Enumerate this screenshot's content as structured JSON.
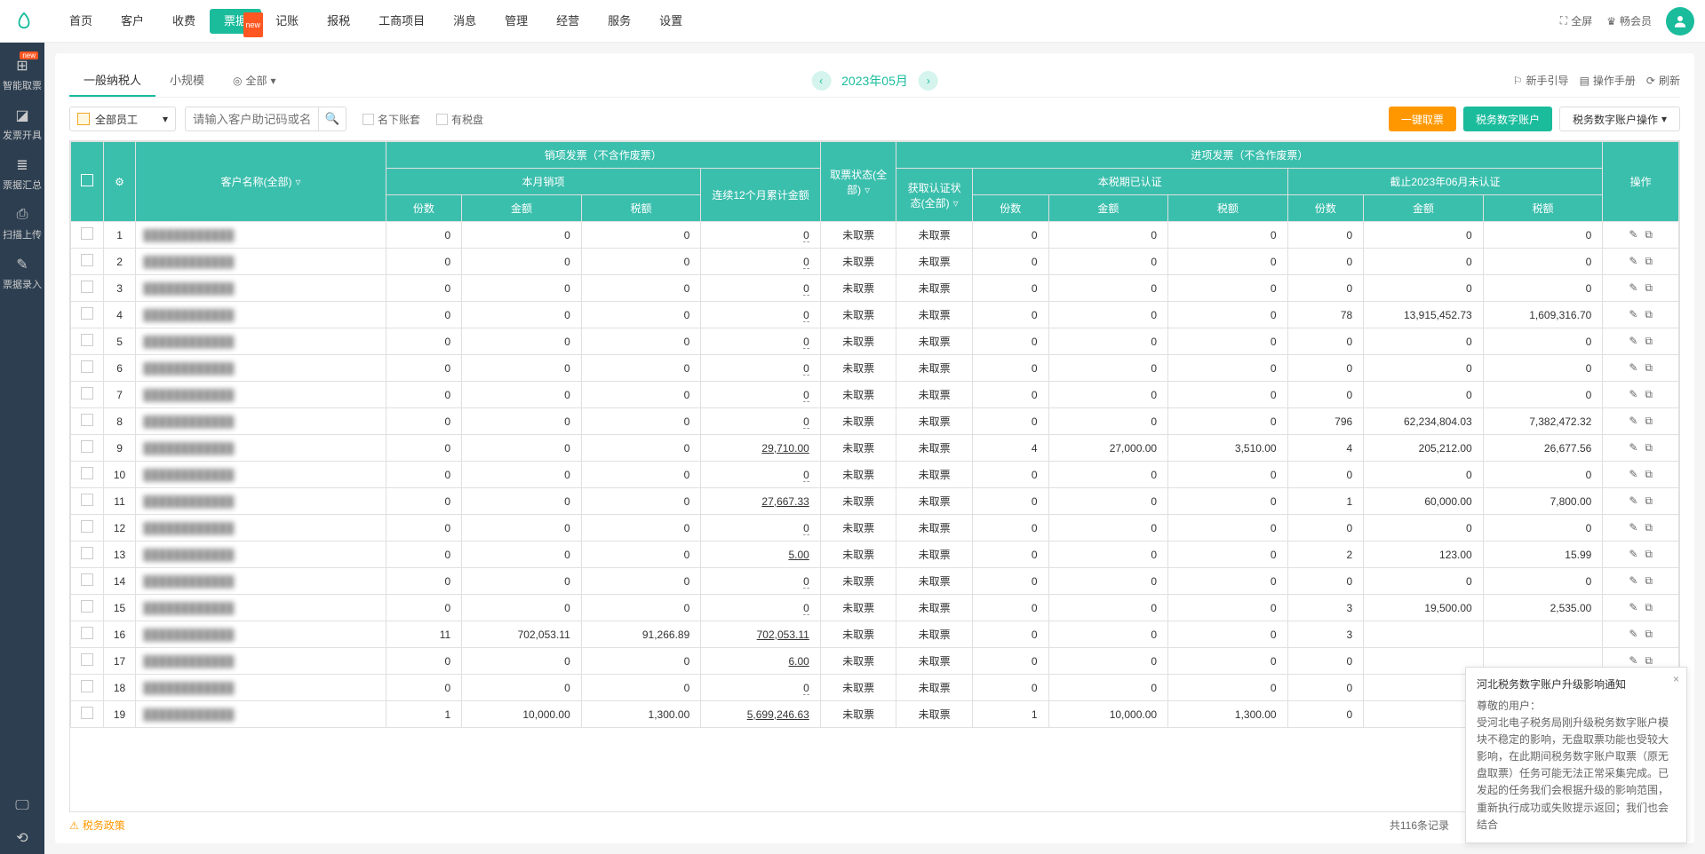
{
  "topnav": {
    "items": [
      "首页",
      "客户",
      "收费",
      "票据",
      "记账",
      "报税",
      "工商项目",
      "消息",
      "管理",
      "经营",
      "服务",
      "设置"
    ],
    "active_index": 3,
    "badge_indices": [
      3
    ],
    "badge_text": "new",
    "right": {
      "fullscreen": "全屏",
      "member": "畅会员"
    }
  },
  "sidebar": {
    "items": [
      {
        "label": "智能取票",
        "icon": "⊞",
        "badge": "new"
      },
      {
        "label": "发票开具",
        "icon": "◪"
      },
      {
        "label": "票据汇总",
        "icon": "≣"
      },
      {
        "label": "扫描上传",
        "icon": "⎙"
      },
      {
        "label": "票据录入",
        "icon": "✎"
      }
    ],
    "bottom": [
      {
        "label": "",
        "icon": "🖵"
      },
      {
        "label": "",
        "icon": "⟲"
      }
    ]
  },
  "tabs": {
    "list": [
      "一般纳税人",
      "小规模"
    ],
    "active_index": 0,
    "extra_label": "全部",
    "period": "2023年05月",
    "right": {
      "guide": "新手引导",
      "manual": "操作手册",
      "refresh": "刷新"
    }
  },
  "filters": {
    "employee_label": "全部员工",
    "search_placeholder": "请输入客户助记码或名称",
    "chk1": "名下账套",
    "chk2": "有税盘",
    "btn_fetch": "一键取票",
    "btn_tax_acct": "税务数字账户",
    "btn_tax_op": "税务数字账户操作"
  },
  "table": {
    "header_group1": {
      "sales": "销项发票（不含作废票）",
      "purchase": "进项发票（不含作废票）"
    },
    "header_group2": {
      "customer": "客户名称(全部)",
      "this_month": "本月销项",
      "cum_12": "连续12个月累计金额",
      "fetch_status": "取票状态(全部)",
      "cert_this": "本税期已认证",
      "cert_until": "截止2023年06月未认证",
      "ops": "操作"
    },
    "header_group3": {
      "count": "份数",
      "amount": "金额",
      "tax": "税额",
      "get_cert_status": "获取认证状态(全部)"
    },
    "status_unfetched": "未取票",
    "rows": [
      {
        "idx": 1,
        "c1": 0,
        "a1": "0",
        "t1": "0",
        "cum": "0",
        "c2": 0,
        "a2": "0",
        "t2": "0",
        "c3": 0,
        "a3": "0",
        "t3": "0"
      },
      {
        "idx": 2,
        "c1": 0,
        "a1": "0",
        "t1": "0",
        "cum": "0",
        "c2": 0,
        "a2": "0",
        "t2": "0",
        "c3": 0,
        "a3": "0",
        "t3": "0"
      },
      {
        "idx": 3,
        "c1": 0,
        "a1": "0",
        "t1": "0",
        "cum": "0",
        "c2": 0,
        "a2": "0",
        "t2": "0",
        "c3": 0,
        "a3": "0",
        "t3": "0"
      },
      {
        "idx": 4,
        "c1": 0,
        "a1": "0",
        "t1": "0",
        "cum": "0",
        "c2": 0,
        "a2": "0",
        "t2": "0",
        "c3": 78,
        "a3": "13,915,452.73",
        "t3": "1,609,316.70"
      },
      {
        "idx": 5,
        "c1": 0,
        "a1": "0",
        "t1": "0",
        "cum": "0",
        "c2": 0,
        "a2": "0",
        "t2": "0",
        "c3": 0,
        "a3": "0",
        "t3": "0"
      },
      {
        "idx": 6,
        "c1": 0,
        "a1": "0",
        "t1": "0",
        "cum": "0",
        "c2": 0,
        "a2": "0",
        "t2": "0",
        "c3": 0,
        "a3": "0",
        "t3": "0"
      },
      {
        "idx": 7,
        "c1": 0,
        "a1": "0",
        "t1": "0",
        "cum": "0",
        "c2": 0,
        "a2": "0",
        "t2": "0",
        "c3": 0,
        "a3": "0",
        "t3": "0"
      },
      {
        "idx": 8,
        "c1": 0,
        "a1": "0",
        "t1": "0",
        "cum": "0",
        "c2": 0,
        "a2": "0",
        "t2": "0",
        "c3": 796,
        "a3": "62,234,804.03",
        "t3": "7,382,472.32"
      },
      {
        "idx": 9,
        "c1": 0,
        "a1": "0",
        "t1": "0",
        "cum": "29,710.00",
        "c2": 4,
        "a2": "27,000.00",
        "t2": "3,510.00",
        "c3": 4,
        "a3": "205,212.00",
        "t3": "26,677.56"
      },
      {
        "idx": 10,
        "c1": 0,
        "a1": "0",
        "t1": "0",
        "cum": "0",
        "c2": 0,
        "a2": "0",
        "t2": "0",
        "c3": 0,
        "a3": "0",
        "t3": "0"
      },
      {
        "idx": 11,
        "c1": 0,
        "a1": "0",
        "t1": "0",
        "cum": "27,667.33",
        "c2": 0,
        "a2": "0",
        "t2": "0",
        "c3": 1,
        "a3": "60,000.00",
        "t3": "7,800.00"
      },
      {
        "idx": 12,
        "c1": 0,
        "a1": "0",
        "t1": "0",
        "cum": "0",
        "c2": 0,
        "a2": "0",
        "t2": "0",
        "c3": 0,
        "a3": "0",
        "t3": "0"
      },
      {
        "idx": 13,
        "c1": 0,
        "a1": "0",
        "t1": "0",
        "cum": "5.00",
        "c2": 0,
        "a2": "0",
        "t2": "0",
        "c3": 2,
        "a3": "123.00",
        "t3": "15.99"
      },
      {
        "idx": 14,
        "c1": 0,
        "a1": "0",
        "t1": "0",
        "cum": "0",
        "c2": 0,
        "a2": "0",
        "t2": "0",
        "c3": 0,
        "a3": "0",
        "t3": "0"
      },
      {
        "idx": 15,
        "c1": 0,
        "a1": "0",
        "t1": "0",
        "cum": "0",
        "c2": 0,
        "a2": "0",
        "t2": "0",
        "c3": 3,
        "a3": "19,500.00",
        "t3": "2,535.00"
      },
      {
        "idx": 16,
        "c1": 11,
        "a1": "702,053.11",
        "t1": "91,266.89",
        "cum": "702,053.11",
        "c2": 0,
        "a2": "0",
        "t2": "0",
        "c3": 3,
        "a3": "",
        "t3": ""
      },
      {
        "idx": 17,
        "c1": 0,
        "a1": "0",
        "t1": "0",
        "cum": "6.00",
        "c2": 0,
        "a2": "0",
        "t2": "0",
        "c3": 0,
        "a3": "",
        "t3": ""
      },
      {
        "idx": 18,
        "c1": 0,
        "a1": "0",
        "t1": "0",
        "cum": "0",
        "c2": 0,
        "a2": "0",
        "t2": "0",
        "c3": 0,
        "a3": "",
        "t3": ""
      },
      {
        "idx": 19,
        "c1": 1,
        "a1": "10,000.00",
        "t1": "1,300.00",
        "cum": "5,699,246.63",
        "c2": 1,
        "a2": "10,000.00",
        "t2": "1,300.00",
        "c3": 0,
        "a3": "",
        "t3": ""
      }
    ]
  },
  "footer": {
    "policy": "税务政策",
    "count_label": "共116条记录"
  },
  "notif": {
    "title": "河北税务数字账户升级影响通知",
    "greeting": "尊敬的用户：",
    "body": "受河北电子税务局刚升级税务数字账户模块不稳定的影响，无盘取票功能也受较大影响，在此期间税务数字账户取票（原无盘取票）任务可能无法正常采集完成。已发起的任务我们会根据升级的影响范围，重新执行成功或失败提示返回；我们也会结合"
  },
  "colors": {
    "teal": "#1abc9c",
    "teal_header": "#3bbfad",
    "orange": "#ff9800",
    "badge": "#ff5722"
  }
}
